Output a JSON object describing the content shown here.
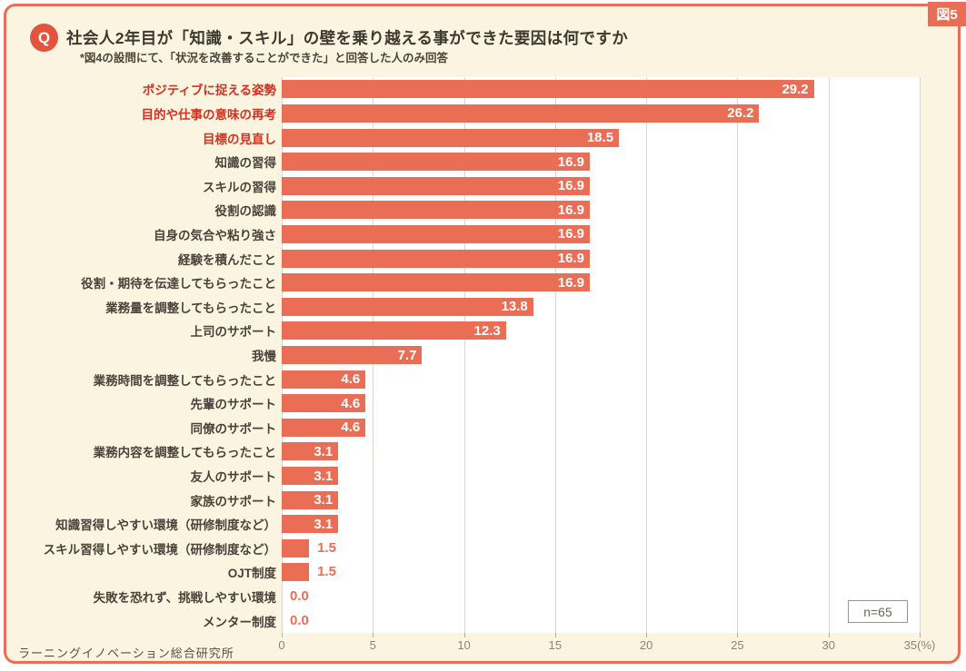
{
  "figure_tag": "図5",
  "header": {
    "q_badge": "Q",
    "title": "社会人2年目が「知識・スキル」の壁を乗り越える事ができた要因は何ですか",
    "subtitle": "*図4の設問にて、「状況を改善することができた」と回答した人のみ回答"
  },
  "annotation": {
    "sample_size_label": "n=65"
  },
  "footer": {
    "source": "ラーニングイノベーション総合研究所"
  },
  "colors": {
    "bar": "#E96E55",
    "q_badge": "#E3543E",
    "highlight_label": "#D5301E",
    "card_background": "#FBF4E0",
    "card_border": "#E96E55",
    "plot_background": "#FFFFFF",
    "gridline": "#DBD7CE",
    "title_text": "#3E3930",
    "subtitle_text": "#4A443A",
    "label_text": "#49433B",
    "axis_text": "#8A8478",
    "value_inside": "#FFFFFF",
    "footer_text": "#564F44"
  },
  "chart_data": {
    "type": "bar",
    "orientation": "horizontal",
    "title": "社会人2年目が「知識・スキル」の壁を乗り越える事ができた要因は何ですか",
    "subtitle": "*図4の設問にて、「状況を改善することができた」と回答した人のみ回答",
    "unit": "%",
    "sample_size": 65,
    "grid": true,
    "xlim": [
      0,
      35
    ],
    "x_ticks": [
      0,
      5,
      10,
      15,
      20,
      25,
      30,
      35
    ],
    "x_tick_labels": [
      "0",
      "5",
      "10",
      "15",
      "20",
      "25",
      "30",
      "35(%)"
    ],
    "highlight_indices": [
      0,
      1,
      2
    ],
    "categories": [
      "ポジティブに捉える姿勢",
      "目的や仕事の意味の再考",
      "目標の見直し",
      "知識の習得",
      "スキルの習得",
      "役割の認識",
      "自身の気合や粘り強さ",
      "経験を積んだこと",
      "役割・期待を伝達してもらったこと",
      "業務量を調整してもらったこと",
      "上司のサポート",
      "我慢",
      "業務時間を調整してもらったこと",
      "先輩のサポート",
      "同僚のサポート",
      "業務内容を調整してもらったこと",
      "友人のサポート",
      "家族のサポート",
      "知識習得しやすい環境（研修制度など）",
      "スキル習得しやすい環境（研修制度など）",
      "OJT制度",
      "失敗を恐れず、挑戦しやすい環境",
      "メンター制度"
    ],
    "values": [
      29.2,
      26.2,
      18.5,
      16.9,
      16.9,
      16.9,
      16.9,
      16.9,
      16.9,
      13.8,
      12.3,
      7.7,
      4.6,
      4.6,
      4.6,
      3.1,
      3.1,
      3.1,
      3.1,
      1.5,
      1.5,
      0.0,
      0.0
    ]
  }
}
